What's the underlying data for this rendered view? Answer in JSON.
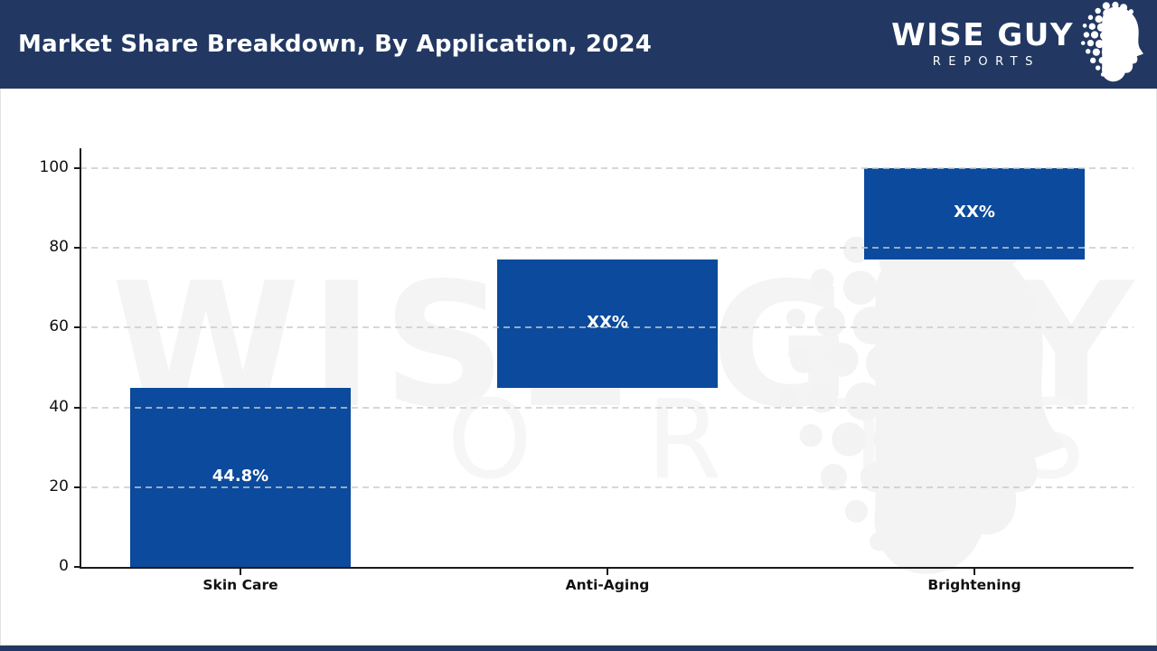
{
  "header": {
    "title": "Market Share Breakdown, By Application, 2024",
    "logo": {
      "line1": "WISE GUY",
      "line2": "REPORTS"
    }
  },
  "watermark": {
    "line1": "WISE GUY",
    "line2": "P O R T S"
  },
  "chart_data": {
    "type": "bar",
    "subtype": "waterfall",
    "title": "Market Share Breakdown, By Application, 2024",
    "categories": [
      "Skin Care",
      "Anti-Aging",
      "Brightening"
    ],
    "segments": [
      {
        "category": "Skin Care",
        "start": 0,
        "end": 44.8,
        "value": 44.8,
        "label": "44.8%"
      },
      {
        "category": "Anti-Aging",
        "start": 44.8,
        "end": 77.2,
        "value": 32.4,
        "label": "XX%"
      },
      {
        "category": "Brightening",
        "start": 77.2,
        "end": 100,
        "value": 22.8,
        "label": "XX%"
      }
    ],
    "label_note": "Anti-Aging and Brightening values are masked as XX% on the chart",
    "yticks": [
      0,
      20,
      40,
      60,
      80,
      100
    ],
    "ylim": [
      0,
      105
    ],
    "xlabel": "",
    "ylabel": "",
    "grid": "horizontal dashed",
    "legend": "none",
    "bar_color": "#0b4a9c",
    "label_color": "#ffffff"
  },
  "colors": {
    "header_bg": "#223862",
    "footer_bg": "#223862",
    "bar": "#0b4a9c",
    "axis": "#1a1a1a",
    "watermark": "#f4f4f4"
  }
}
